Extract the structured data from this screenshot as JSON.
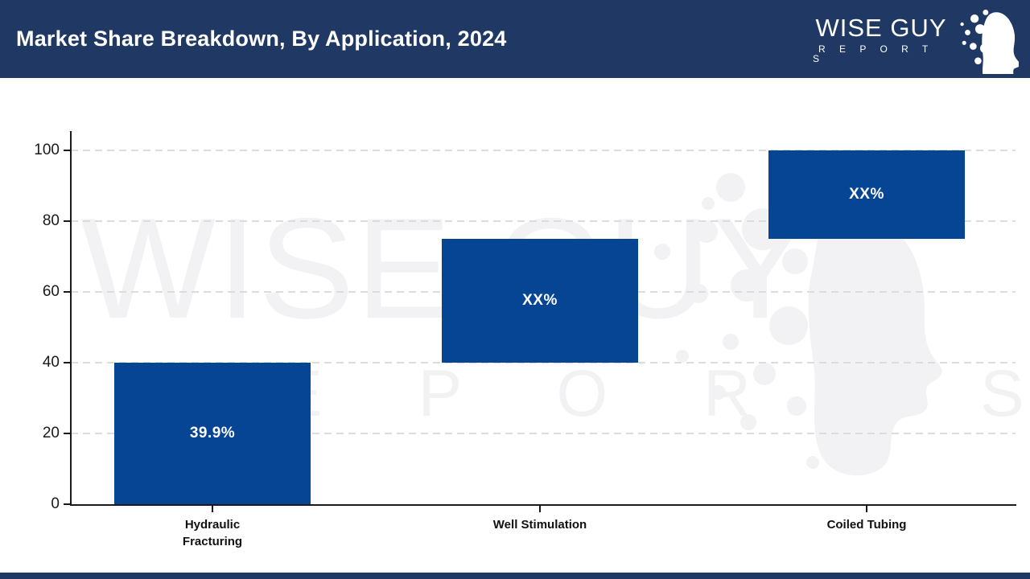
{
  "header": {
    "title": "Market Share Breakdown, By Application, 2024",
    "logo": {
      "name": "WISE GUY",
      "sub": "R E P O R T S"
    }
  },
  "watermark": {
    "line1": "WISE GUY",
    "line2": "R E P O R T S"
  },
  "chart_data": {
    "type": "bar",
    "variant": "waterfall",
    "title": "Market Share Breakdown, By Application, 2024",
    "categories": [
      "Hydraulic Fracturing",
      "Well Stimulation",
      "Coiled Tubing"
    ],
    "category_lines": [
      [
        "Hydraulic",
        "Fracturing"
      ],
      [
        "Well Stimulation"
      ],
      [
        "Coiled Tubing"
      ]
    ],
    "segments": [
      {
        "category": "Hydraulic Fracturing",
        "start": 0,
        "end": 40,
        "label": "39.9%"
      },
      {
        "category": "Well Stimulation",
        "start": 40,
        "end": 75,
        "label": "XX%"
      },
      {
        "category": "Coiled Tubing",
        "start": 75,
        "end": 100,
        "label": "XX%"
      }
    ],
    "y_ticks": [
      0,
      20,
      40,
      60,
      80,
      100
    ],
    "ylim": [
      0,
      105
    ],
    "xlabel": "",
    "ylabel": "",
    "legend": "none",
    "grid": "horizontal-dashed",
    "bar_color": "#064494",
    "bar_label_color": "#ffffff"
  },
  "colors": {
    "header_bg": "#1f3864",
    "footer_bg": "#1f3864",
    "axis": "#1a1a1a",
    "gridline": "#dcdcdc",
    "watermark": "#f2f2f4",
    "title_text": "#ffffff"
  }
}
